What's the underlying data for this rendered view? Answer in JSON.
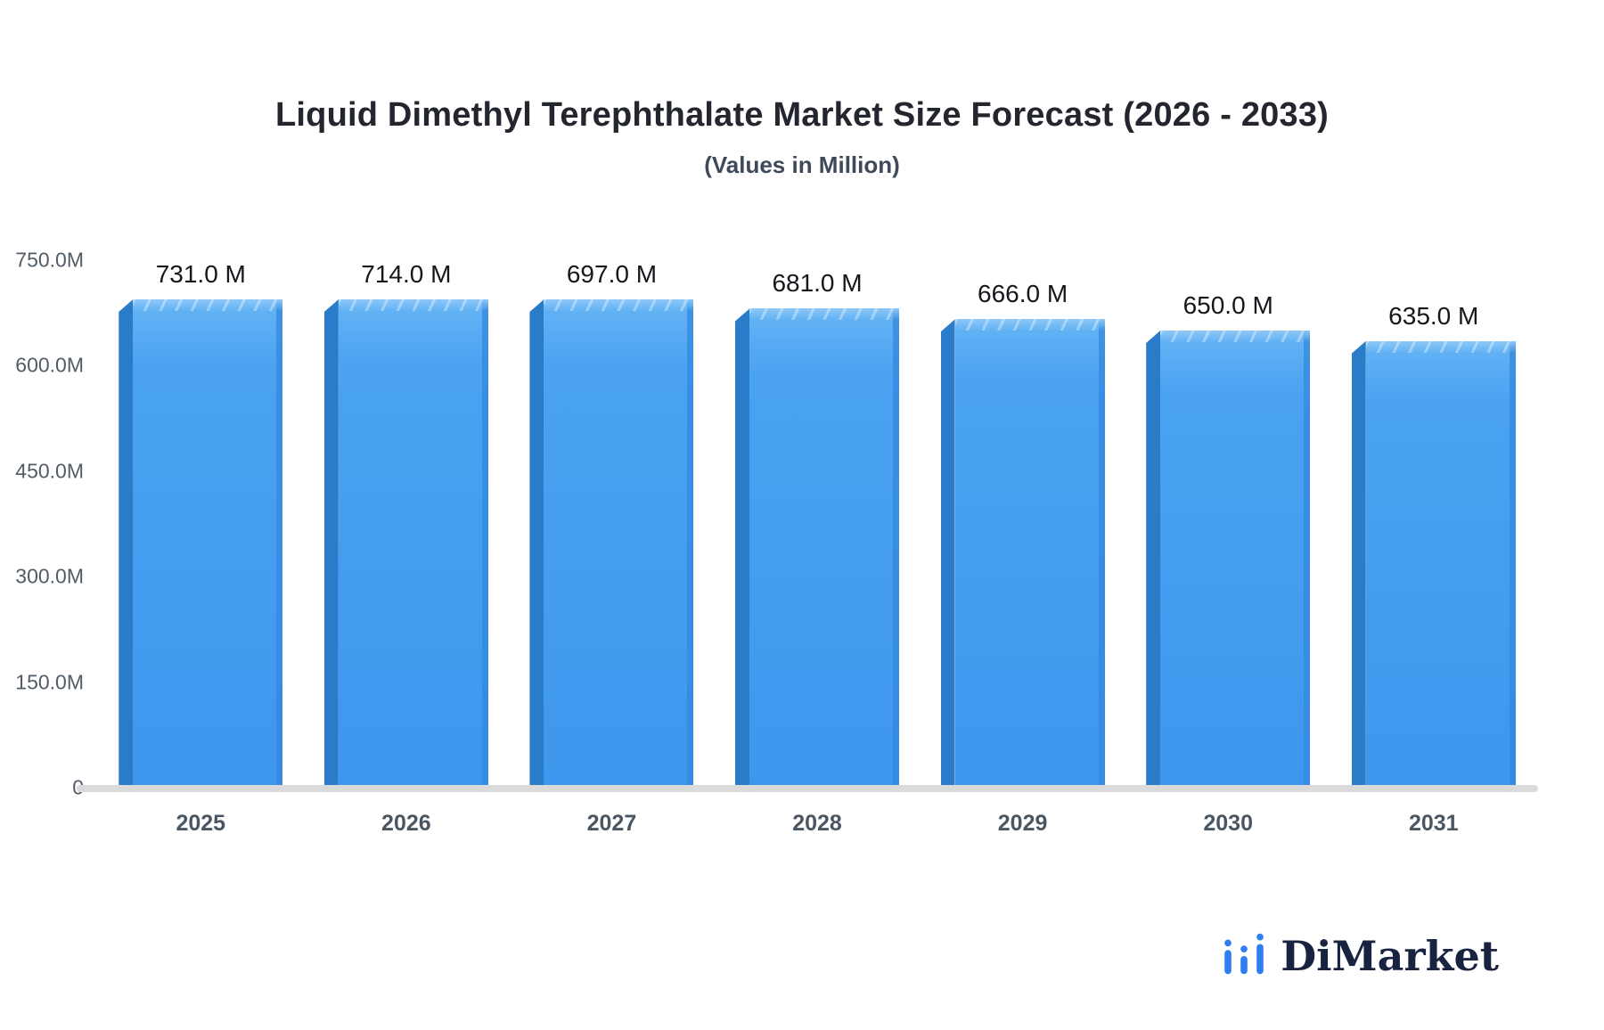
{
  "brand": {
    "name": "DiMarket"
  },
  "colors": {
    "bar_main": "#3e97ee",
    "bar_side": "#2a7cc9",
    "accent": "#2f7ff0",
    "title": "#23262e",
    "subtitle": "#3e4a5a",
    "axis_text": "#525c68",
    "baseline": "#dadada"
  },
  "chart_data": {
    "type": "bar",
    "title": "Liquid Dimethyl Terephthalate Market Size Forecast (2026 - 2033)",
    "subtitle": "(Values in Million)",
    "categories": [
      "2025",
      "2026",
      "2027",
      "2028",
      "2029",
      "2030",
      "2031"
    ],
    "values": [
      731,
      714,
      697,
      681,
      666,
      650,
      635
    ],
    "value_labels": [
      "731.0 M",
      "714.0 M",
      "697.0 M",
      "681.0 M",
      "666.0 M",
      "650.0 M",
      "635.0 M"
    ],
    "xlabel": "",
    "ylabel": "",
    "ylim": [
      0,
      750
    ],
    "ytick_labels": [
      "750.0M",
      "600.0M",
      "450.0M",
      "300.0M",
      "150.0M",
      "0"
    ],
    "grid": false,
    "legend": false
  }
}
